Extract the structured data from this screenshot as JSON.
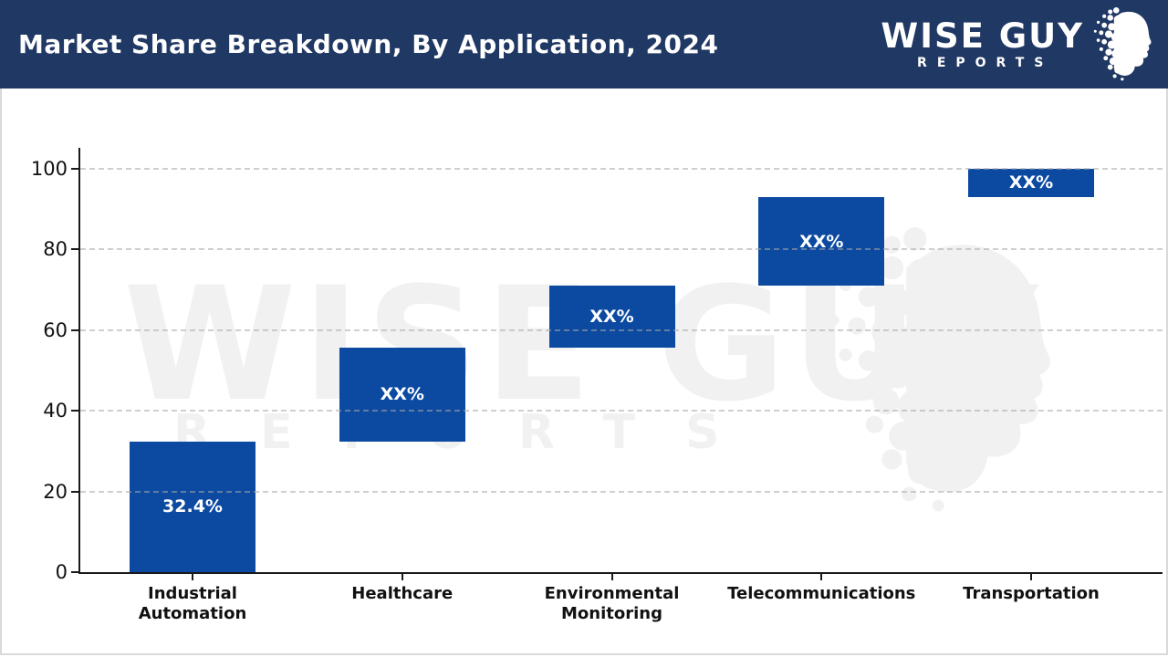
{
  "header": {
    "title": "Market Share Breakdown, By Application, 2024",
    "bg_color": "#203864",
    "logo": {
      "line1": "WISE GUY",
      "line2": "REPORTS"
    }
  },
  "watermark": {
    "line1": "WISE GUY",
    "line2": "REPORTS"
  },
  "chart_data": {
    "type": "bar",
    "subtype": "waterfall",
    "title": "Market Share Breakdown, By Application, 2024",
    "categories": [
      "Industrial Automation",
      "Healthcare",
      "Environmental Monitoring",
      "Telecommunications",
      "Transportation"
    ],
    "bars": [
      {
        "category": "Industrial\nAutomation",
        "start": 0,
        "end": 32.4,
        "value": 32.4,
        "label": "32.4%"
      },
      {
        "category": "Healthcare",
        "start": 32.4,
        "end": 55.7,
        "value": 23.3,
        "label": "XX%"
      },
      {
        "category": "Environmental\nMonitoring",
        "start": 55.7,
        "end": 71.0,
        "value": 15.3,
        "label": "XX%"
      },
      {
        "category": "Telecommunications",
        "start": 71.0,
        "end": 93.0,
        "value": 22.0,
        "label": "XX%"
      },
      {
        "category": "Transportation",
        "start": 93.0,
        "end": 100.0,
        "value": 7.0,
        "label": "XX%"
      }
    ],
    "ylim": [
      0,
      105
    ],
    "yticks": [
      0,
      20,
      40,
      60,
      80,
      100
    ],
    "grid": "horizontal-dashed",
    "legend": "none",
    "bar_color": "#0c4aa1",
    "bar_label_color": "#ffffff",
    "axis_color": "#1a1a1a"
  }
}
